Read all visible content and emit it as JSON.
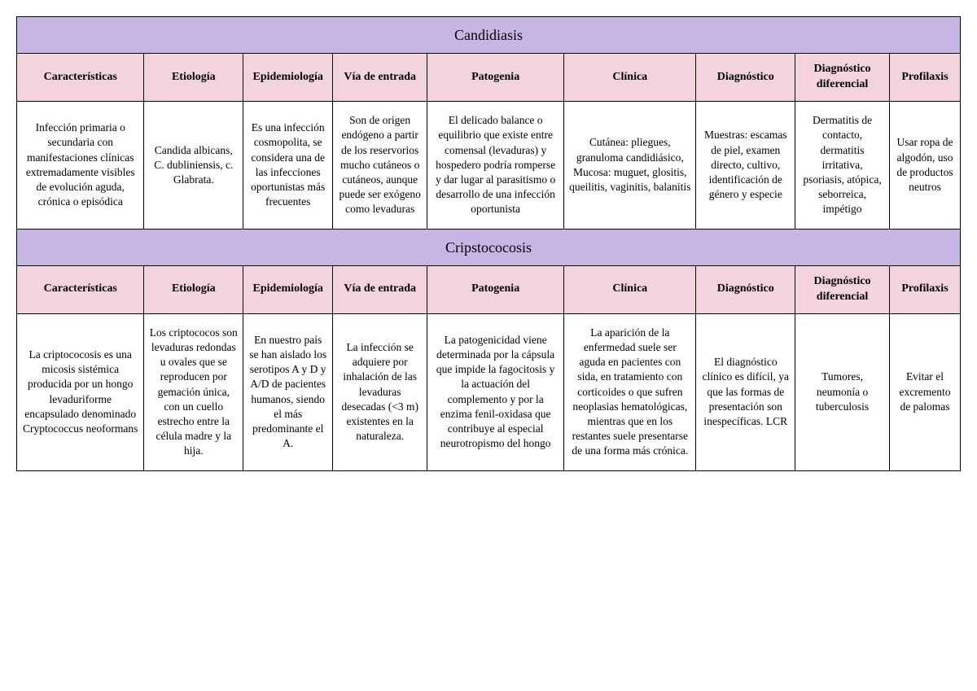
{
  "colors": {
    "title_bg": "#c7b6e3",
    "header_bg": "#f3d3dc",
    "cell_bg": "#ffffff",
    "border": "#000000",
    "text": "#000000"
  },
  "column_widths_pct": [
    13.5,
    10.5,
    9.5,
    10,
    14.5,
    14,
    10.5,
    10,
    7.5
  ],
  "sections": [
    {
      "title": "Candidiasis",
      "headers": [
        "Características",
        "Etiología",
        "Epidemiología",
        "Vía de entrada",
        "Patogenia",
        "Clínica",
        "Diagnóstico",
        "Diagnóstico diferencial",
        "Profilaxis"
      ],
      "row": [
        "Infección primaria o secundaria con manifestaciones clínicas extremadamente visibles de evolución aguda, crónica o episódica",
        "Candida albicans, C. dubliniensis, c. Glabrata.",
        "Es una infección cosmopolita, se considera una de las infecciones oportunistas más frecuentes",
        "Son de origen endógeno a partir de los reservorios mucho cutáneos o cutáneos, aunque puede ser exógeno como levaduras",
        "El delicado balance o equilibrio que existe entre comensal (levaduras) y hospedero podría romperse y dar lugar al parasitismo o desarrollo de una infección oportunista",
        "Cutánea: pliegues, granuloma candidiásico, Mucosa: muguet, glositis, queilitis, vaginitis, balanitis",
        "Muestras: escamas de piel, examen directo, cultivo, identificación de género y especie",
        "Dermatitis de contacto, dermatitis irritativa, psoriasis, atópica, seborreica, impétigo",
        "Usar ropa de algodón, uso de productos neutros"
      ]
    },
    {
      "title": "Cripstococosis",
      "headers": [
        "Características",
        "Etiología",
        "Epidemiología",
        "Vía de entrada",
        "Patogenia",
        "Clínica",
        "Diagnóstico",
        "Diagnóstico diferencial",
        "Profilaxis"
      ],
      "row": [
        "La criptococosis es una micosis sistémica producida por un hongo levaduriforme encapsulado denominado Cryptococcus neoformans",
        "Los criptococos son levaduras redondas u ovales que se reproducen por gemación única, con un cuello estrecho entre la célula madre y la hija.",
        "En nuestro país se han aislado los serotipos A y D y A/D de pacientes humanos, siendo el más predominante el A.",
        "La infección se adquiere por inhalación de las levaduras desecadas (<3 m) existentes en la naturaleza.",
        "La patogenicidad viene determinada por la cápsula que impide la fagocitosis y la actuación del complemento y por la enzima fenil-oxidasa que contribuye al especial neurotropismo del hongo",
        "La aparición de la enfermedad suele ser aguda en pacientes con sida, en tratamiento con corticoides o que sufren neoplasias hematológicas, mientras que en los restantes suele presentarse de una forma más crónica.",
        "El diagnóstico clínico es difícil, ya que las formas de presentación son inespecíficas. LCR",
        "Tumores, neumonía o tuberculosis",
        "Evitar el excremento de palomas"
      ]
    }
  ]
}
